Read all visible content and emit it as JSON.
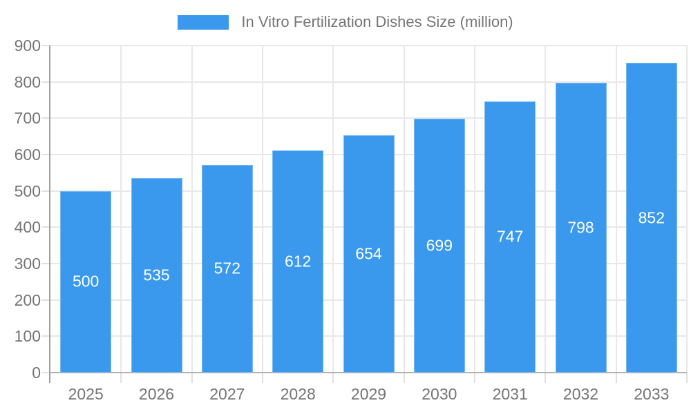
{
  "chart_data": {
    "type": "bar",
    "title": "In Vitro Fertilization Dishes Size (million)",
    "categories": [
      "2025",
      "2026",
      "2027",
      "2028",
      "2029",
      "2030",
      "2031",
      "2032",
      "2033"
    ],
    "values": [
      500,
      535,
      572,
      612,
      654,
      699,
      747,
      798,
      852
    ],
    "xlabel": "",
    "ylabel": "",
    "ylim": [
      0,
      900
    ],
    "yticks": [
      0,
      100,
      200,
      300,
      400,
      500,
      600,
      700,
      800,
      900
    ],
    "grid": true,
    "legend_position": "top-center",
    "value_labels": "inside-center",
    "colors": {
      "bar": "#3A99EC",
      "bar_border": "#7CB9F1",
      "value_label_text": "#FFFFFF",
      "axis_text": "#757575",
      "gridline": "#E8E8E8",
      "baseline": "#B3B3B3",
      "axis_line": "#9E9E9E",
      "tick": "#E0E0E0",
      "background": "#FFFFFF"
    }
  }
}
